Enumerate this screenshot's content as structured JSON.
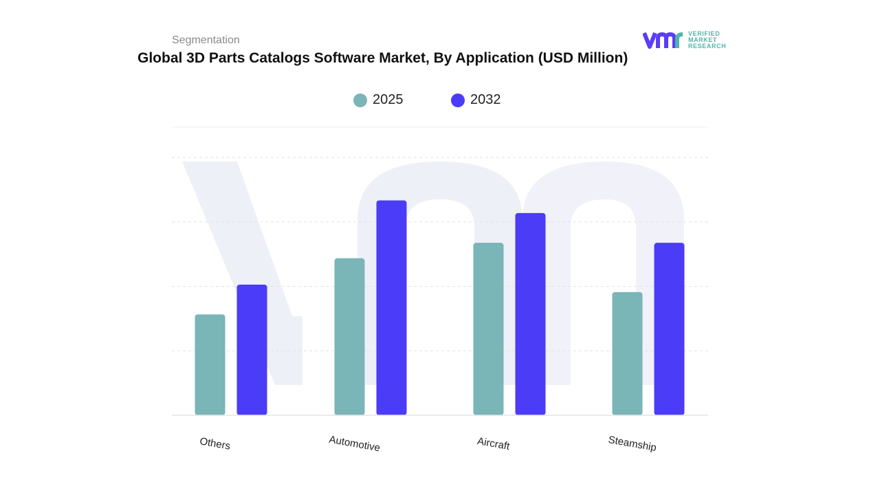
{
  "header": {
    "subtitle": "Segmentation",
    "title": "Global 3D Parts Catalogs Software Market, By Application (USD Million)"
  },
  "logo": {
    "line1": "VERIFIED",
    "line2": "MARKET",
    "line3": "RESEARCH",
    "icon": "vmr-logo-icon",
    "colors": {
      "primary": "#5b3df5",
      "secondary": "#4fb5a8"
    }
  },
  "chart_data": {
    "type": "bar",
    "categories": [
      "Others",
      "Automotive",
      "Aircraft",
      "Steamship"
    ],
    "series": [
      {
        "name": "2025",
        "color": "#7ab5b8",
        "values": [
          176,
          274,
          301,
          215
        ]
      },
      {
        "name": "2032",
        "color": "#4b3cf7",
        "values": [
          228,
          375,
          353,
          301
        ]
      }
    ],
    "ylim": [
      0,
      450
    ],
    "grid": true,
    "legend_position": "top-center",
    "xlabel": "",
    "ylabel": ""
  }
}
